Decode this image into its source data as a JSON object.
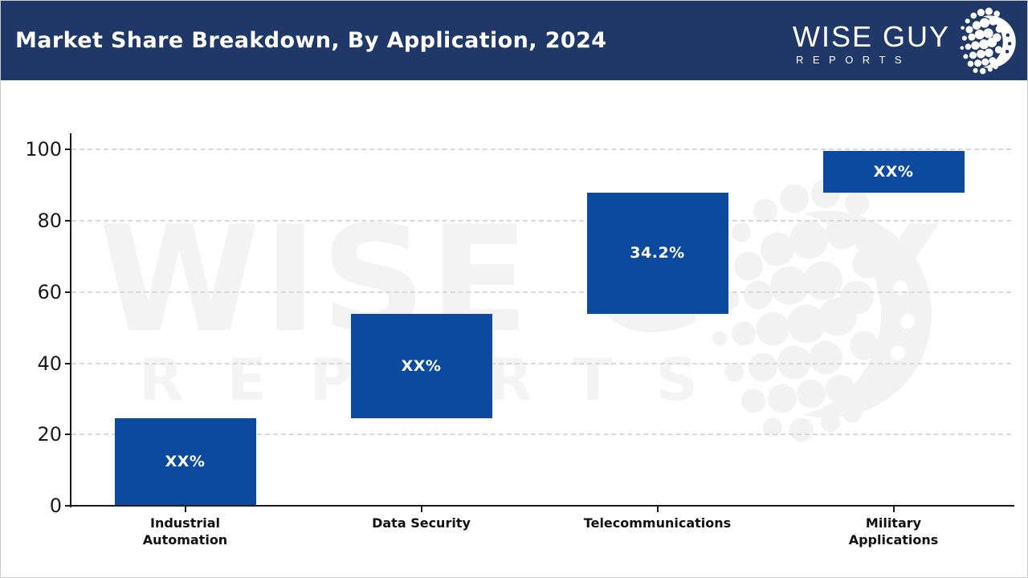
{
  "header": {
    "title": "Market Share Breakdown, By Application, 2024",
    "bg": "#1f3868",
    "logo": {
      "name": "WISE GUY",
      "tagline": "REPORTS"
    }
  },
  "watermark": {
    "line1": "WISE GUY",
    "line2": "REPORTS"
  },
  "chart_data": {
    "type": "bar",
    "subtype": "floating-waterfall",
    "title": "Market Share Breakdown, By Application, 2024",
    "categories": [
      "Industrial Automation",
      "Data Security",
      "Telecommunications",
      "Military Applications"
    ],
    "category_lines": [
      [
        "Industrial",
        "Automation"
      ],
      [
        "Data Security"
      ],
      [
        "Telecommunications"
      ],
      [
        "Military",
        "Applications"
      ]
    ],
    "series": [
      {
        "name": "Market Share (%)",
        "segments": [
          {
            "category": "Industrial Automation",
            "from": 0,
            "to": 24.6,
            "label": "XX%"
          },
          {
            "category": "Data Security",
            "from": 24.6,
            "to": 53.8,
            "label": "XX%"
          },
          {
            "category": "Telecommunications",
            "from": 53.8,
            "to": 88.0,
            "label": "34.2%"
          },
          {
            "category": "Military Applications",
            "from": 88.0,
            "to": 99.6,
            "label": "XX%"
          }
        ]
      }
    ],
    "yticks": [
      0,
      20,
      40,
      60,
      80,
      100
    ],
    "ylim": [
      0,
      104.6
    ],
    "grid": "horizontal-dashed",
    "legend": "none",
    "bar_color": "#0b4a9e",
    "bar_label_color": "#ffffff",
    "axis_color": "#1a1a1a",
    "grid_color": "#d9d9d9"
  }
}
